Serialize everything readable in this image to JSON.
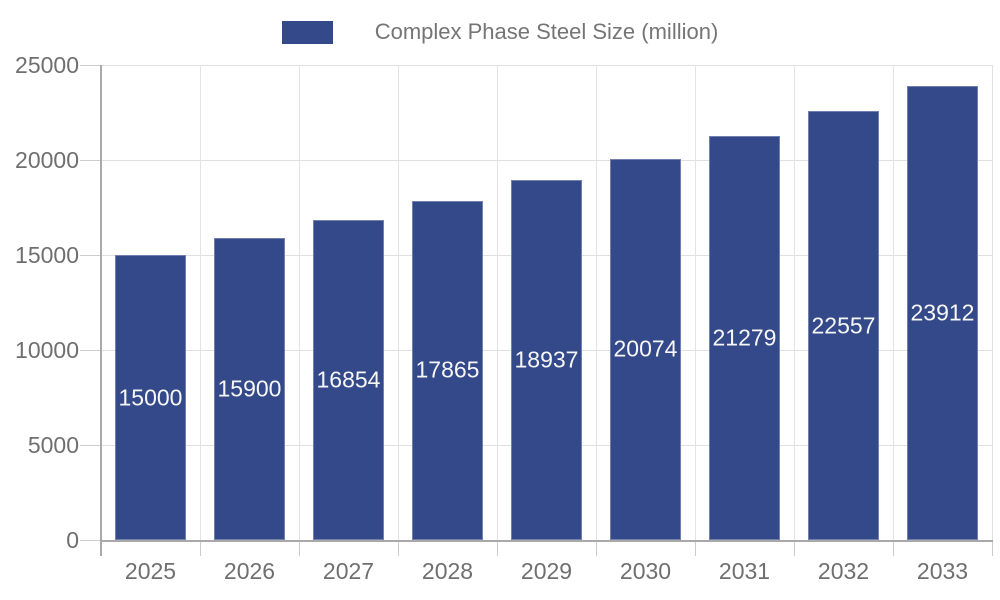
{
  "legend": {
    "label": "Complex Phase Steel Size (million)",
    "swatch_color": "#34498a"
  },
  "chart_data": {
    "type": "bar",
    "title": "Complex Phase Steel Size (million)",
    "categories": [
      "2025",
      "2026",
      "2027",
      "2028",
      "2029",
      "2030",
      "2031",
      "2032",
      "2033"
    ],
    "values": [
      15000,
      15900,
      16854,
      17865,
      18937,
      20074,
      21279,
      22557,
      23912
    ],
    "series": [
      {
        "name": "Complex Phase Steel Size (million)",
        "values": [
          15000,
          15900,
          16854,
          17865,
          18937,
          20074,
          21279,
          22557,
          23912
        ]
      }
    ],
    "xlabel": "",
    "ylabel": "",
    "ylim": [
      0,
      25000
    ],
    "yticks": [
      0,
      5000,
      10000,
      15000,
      20000,
      25000
    ],
    "grid": "both",
    "legend_position": "top-center",
    "value_labels": "inside-center",
    "colors": {
      "bar": "#34498a",
      "bar_edge": "#7380ae",
      "value_text": "#f7f7f7",
      "axis_line": "#a9a9a9",
      "gridline": "#e0e0e0",
      "tick": "#cccccc",
      "tick_label": "#6f6f6f",
      "legend_text": "#757575",
      "background": "#ffffff"
    }
  }
}
